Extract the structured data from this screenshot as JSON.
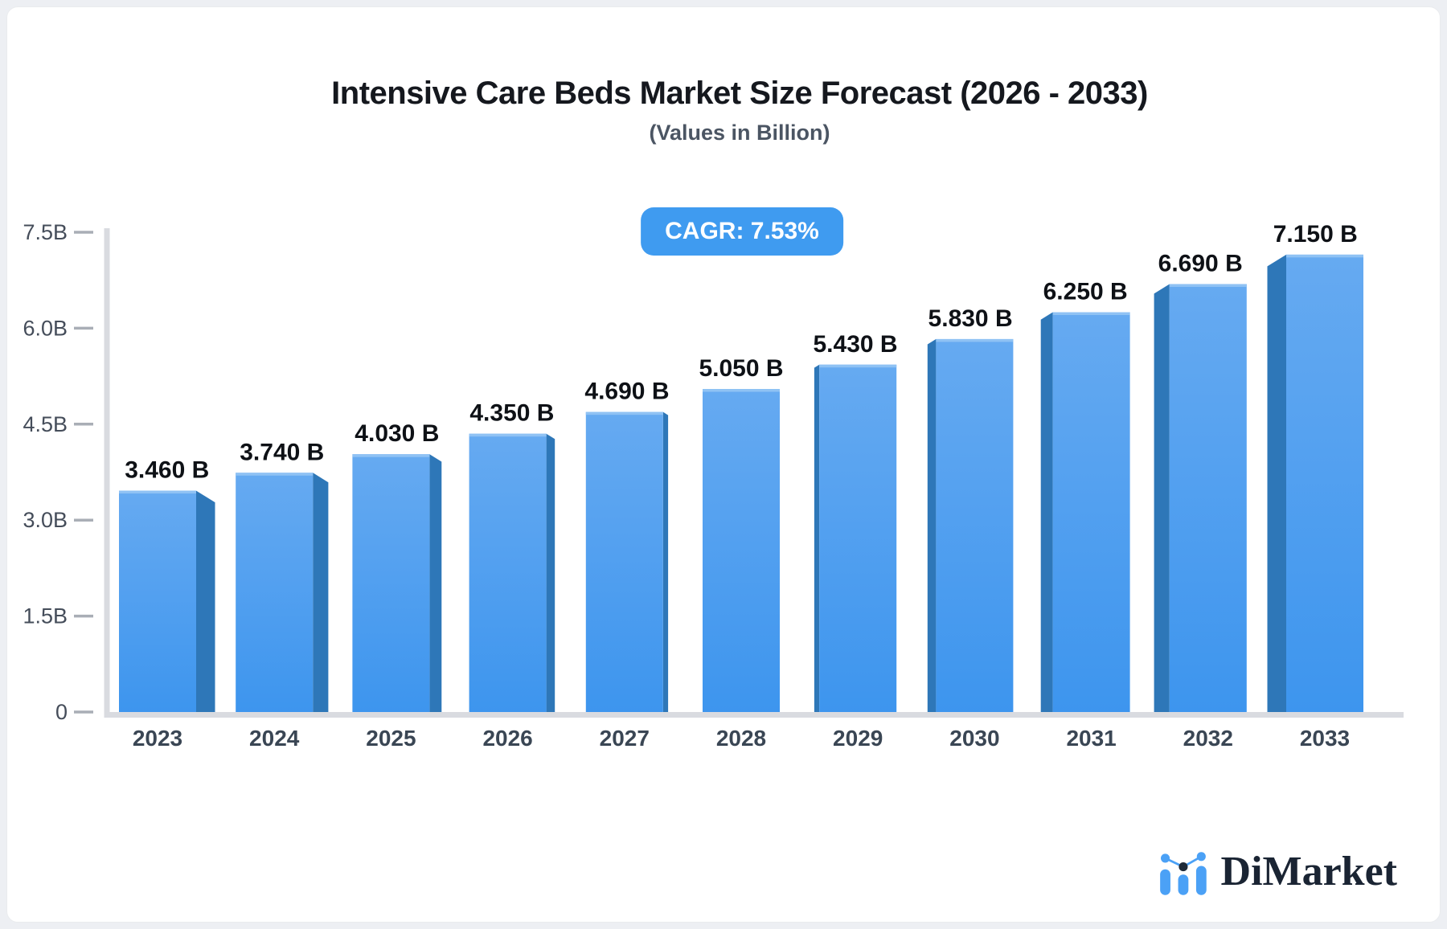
{
  "header": {
    "title": "Intensive Care Beds Market Size Forecast (2026 - 2033)",
    "subtitle": "(Values in Billion)",
    "cagr_badge": "CAGR: 7.53%",
    "badge_color": "#3f9bf0"
  },
  "chart_data": {
    "type": "bar",
    "title": "Intensive Care Beds Market Size Forecast (2026 - 2033)",
    "subtitle": "(Values in Billion)",
    "categories": [
      "2023",
      "2024",
      "2025",
      "2026",
      "2027",
      "2028",
      "2029",
      "2030",
      "2031",
      "2032",
      "2033"
    ],
    "values": [
      3.46,
      3.74,
      4.03,
      4.35,
      4.69,
      5.05,
      5.43,
      5.83,
      6.25,
      6.69,
      7.15
    ],
    "value_labels": [
      "3.460 B",
      "3.740 B",
      "4.030 B",
      "4.350 B",
      "4.690 B",
      "5.050 B",
      "5.430 B",
      "5.830 B",
      "6.250 B",
      "6.690 B",
      "7.150 B"
    ],
    "y_ticks": [
      {
        "value": 0,
        "label": "0"
      },
      {
        "value": 1.5,
        "label": "1.5B"
      },
      {
        "value": 3.0,
        "label": "3.0B"
      },
      {
        "value": 4.5,
        "label": "4.5B"
      },
      {
        "value": 6.0,
        "label": "6.0B"
      },
      {
        "value": 7.5,
        "label": "7.5B"
      }
    ],
    "ylim": [
      0,
      7.5
    ],
    "xlabel": "",
    "ylabel": "",
    "grid": "off",
    "legend": "none",
    "style": "3d-perspective-bars",
    "colors": {
      "bar_face_top": "#66aaf1",
      "bar_face_bottom": "#3d95ee",
      "bar_face_highlight": "#8fc2f4",
      "bar_side": "#2e77b8",
      "axis_line": "#d9dbe0",
      "tick_dash": "#a9aeb6",
      "y_label_text": "#454d5a",
      "x_label_text": "#3a4654",
      "value_label_text": "#0e1116"
    }
  },
  "footer": {
    "brand": "DiMarket",
    "logo_icon": "bar-chart-logo-icon",
    "logo_blue": "#4ba1f6",
    "logo_navy": "#1e2a38"
  }
}
